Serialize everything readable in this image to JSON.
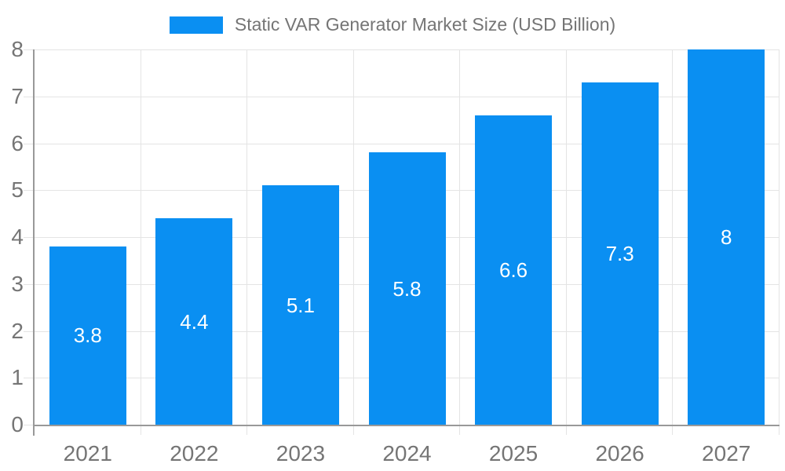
{
  "chart_data": {
    "type": "bar",
    "title": "Static VAR Generator Market Size (USD Billion)",
    "categories": [
      "2021",
      "2022",
      "2023",
      "2024",
      "2025",
      "2026",
      "2027"
    ],
    "values": [
      3.8,
      4.4,
      5.1,
      5.8,
      6.6,
      7.3,
      8
    ],
    "value_labels": [
      "3.8",
      "4.4",
      "5.1",
      "5.8",
      "6.6",
      "7.3",
      "8"
    ],
    "xlabel": "",
    "ylabel": "",
    "ylim": [
      0,
      8
    ],
    "yticks": [
      0,
      1,
      2,
      3,
      4,
      5,
      6,
      7,
      8
    ],
    "grid": true,
    "legend_position": "top",
    "value_label_position": "inside-center"
  },
  "colors": {
    "background": "#ffffff",
    "bar": "#0a8ff2",
    "bar_value_text": "#ffffff",
    "axis_line": "#999999",
    "gridline": "#e4e4e4",
    "tick_text": "#757575",
    "legend_text": "#757575"
  }
}
